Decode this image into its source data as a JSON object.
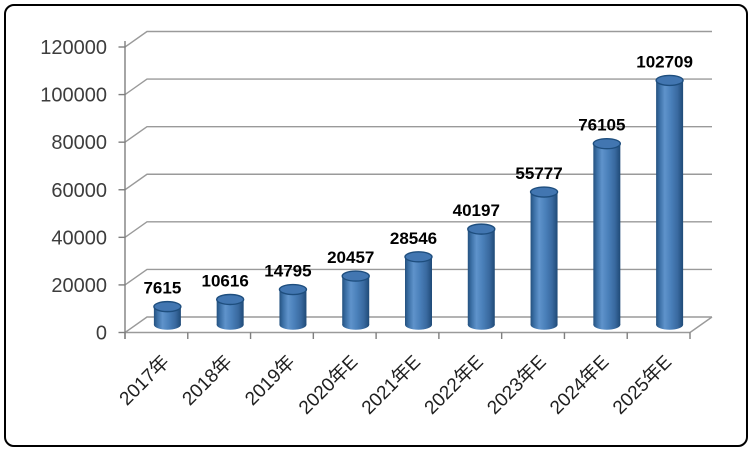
{
  "window": {
    "background_color": "#ffffff",
    "frame_border_color": "#000000"
  },
  "chart_data": {
    "type": "bar",
    "subtype": "3d-cylinder",
    "title": "",
    "xlabel": "",
    "ylabel": "",
    "categories": [
      "2017年",
      "2018年",
      "2019年",
      "2020年E",
      "2021年E",
      "2022年E",
      "2023年E",
      "2024年E",
      "2025年E"
    ],
    "values": [
      7615,
      10616,
      14795,
      20457,
      28546,
      40197,
      55777,
      76105,
      102709
    ],
    "data_labels": [
      "7615",
      "10616",
      "14795",
      "20457",
      "28546",
      "40197",
      "55777",
      "76105",
      "102709"
    ],
    "ylim": [
      0,
      120000
    ],
    "ytick_interval": 20000,
    "ytick_labels": [
      "0",
      "20000",
      "40000",
      "60000",
      "80000",
      "100000",
      "120000"
    ],
    "grid": true,
    "legend": false,
    "colors": {
      "bar_edge_dark": "#24517F",
      "bar_mid": "#3B6FA5",
      "bar_highlight": "#5F93CB",
      "bar_main": "#4A80BA",
      "bar_shade": "#39699F",
      "bar_edge_dark2": "#1F4A77",
      "bar_top_fill": "#4276B1",
      "bar_top_stroke": "#1E4E7E",
      "gridline": "#9A9A9A",
      "axis": "#7F7F7F",
      "ytick_label_color": "#3D3D3D",
      "xtick_label_color": "#1F1F1F",
      "data_label_color": "#000000"
    }
  }
}
